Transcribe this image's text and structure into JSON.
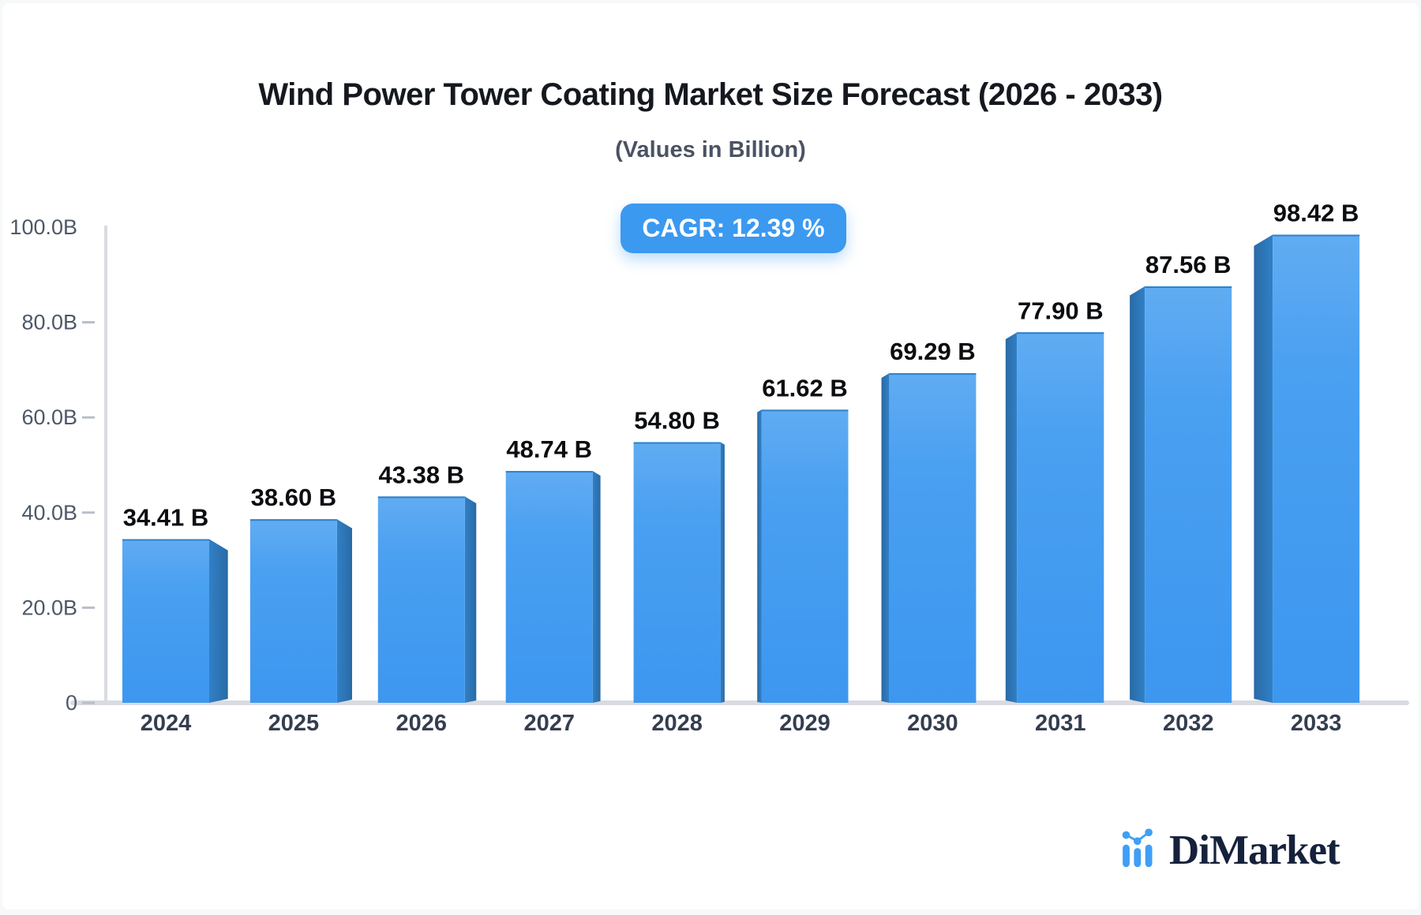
{
  "page": {
    "background": "#f7f8fa",
    "card_background": "#ffffff"
  },
  "header": {
    "title": "Wind Power Tower Coating Market Size Forecast (2026 - 2033)",
    "subtitle": "(Values in Billion)"
  },
  "badge": {
    "label": "CAGR: 12.39 %",
    "background": "#3b99f0",
    "text_color": "#ffffff"
  },
  "chart_data": {
    "type": "bar",
    "title": "Wind Power Tower Coating Market Size Forecast (2026 - 2033)",
    "subtitle": "(Values in Billion)",
    "categories": [
      "2024",
      "2025",
      "2026",
      "2027",
      "2028",
      "2029",
      "2030",
      "2031",
      "2032",
      "2033"
    ],
    "values": [
      34.41,
      38.6,
      43.38,
      48.74,
      54.8,
      61.62,
      69.29,
      77.9,
      87.56,
      98.42
    ],
    "bar_labels": [
      "34.41 B",
      "38.60 B",
      "43.38 B",
      "48.74 B",
      "54.80 B",
      "61.62 B",
      "69.29 B",
      "77.90 B",
      "87.56 B",
      "98.42 B"
    ],
    "y_ticks": [
      {
        "v": 0,
        "label": "0"
      },
      {
        "v": 20,
        "label": "20.0B"
      },
      {
        "v": 40,
        "label": "40.0B"
      },
      {
        "v": 60,
        "label": "60.0B"
      },
      {
        "v": 80,
        "label": "80.0B"
      },
      {
        "v": 100,
        "label": "100.0B"
      }
    ],
    "ylim": [
      0,
      100
    ],
    "xlabel": "",
    "ylabel": "",
    "grid": false,
    "legend": false,
    "style_3d": true,
    "annotation": "CAGR: 12.39 %",
    "colors": {
      "bar_face_top": "#61acf2",
      "bar_face_bottom": "#3d97ef",
      "bar_side": "#2d74b4",
      "bar_top_edge": "#2f81c9",
      "axis": "#d8dbe1",
      "tick_dash": "#b8bec8",
      "tick_text": "#4e5869",
      "value_text": "#0b0d10",
      "category_text": "#353e4f"
    }
  },
  "branding": {
    "logo_text": "DiMarket",
    "logo_icon": "bar-chart-trend-icon",
    "icon_color": "#3f9ff6",
    "text_color": "#16213b"
  }
}
